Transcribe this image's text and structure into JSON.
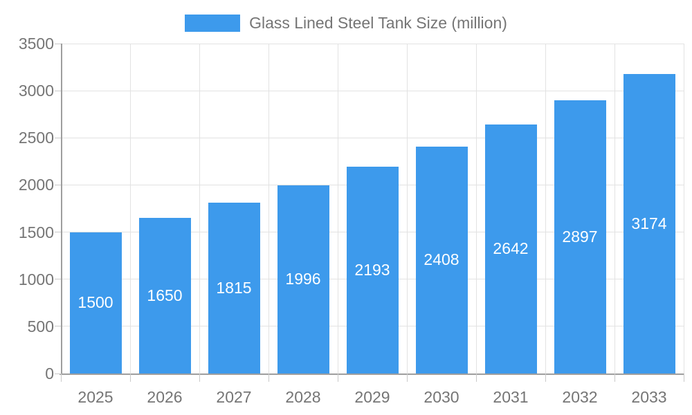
{
  "legend": {
    "label": "Glass Lined Steel Tank Size (million)"
  },
  "colors": {
    "bar": "#3d9aec",
    "grid": "#e2e2e2",
    "axis": "#9e9e9e",
    "tick": "#c9c9c9",
    "text": "#757575",
    "bar_label": "#ffffff"
  },
  "chart_data": {
    "type": "bar",
    "title": "Glass Lined Steel Tank Size (million)",
    "series_name": "Glass Lined Steel Tank Size (million)",
    "categories": [
      "2025",
      "2026",
      "2027",
      "2028",
      "2029",
      "2030",
      "2031",
      "2032",
      "2033"
    ],
    "values": [
      1500,
      1650,
      1815,
      1996,
      2193,
      2408,
      2642,
      2897,
      3174
    ],
    "xlabel": "",
    "ylabel": "",
    "ylim": [
      0,
      3500
    ],
    "yticks": [
      0,
      500,
      1000,
      1500,
      2000,
      2500,
      3000,
      3500
    ],
    "grid": true,
    "legend_position": "top",
    "bar_labels": "inside-center-white"
  }
}
